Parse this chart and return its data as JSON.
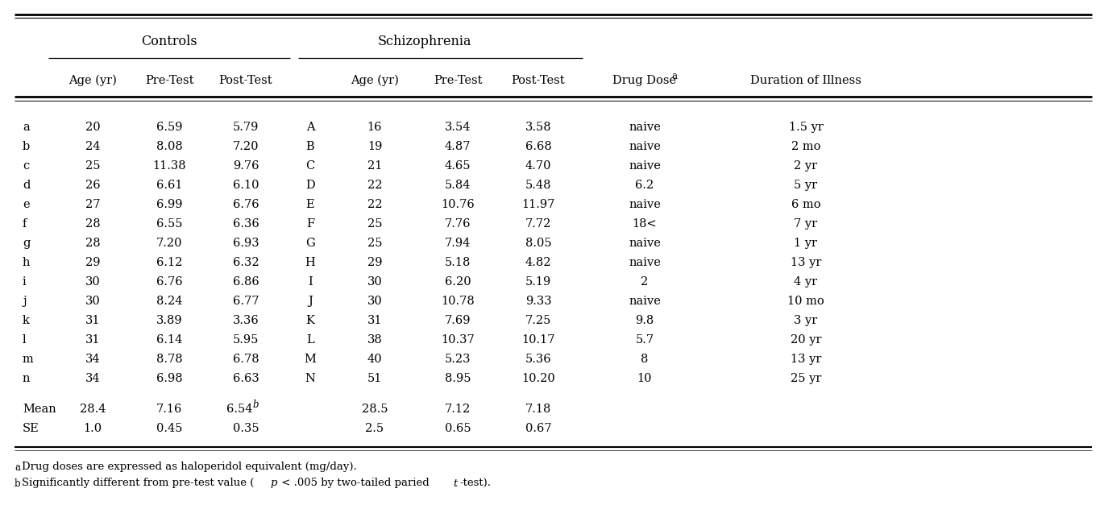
{
  "controls_header": "Controls",
  "schizophrenia_header": "Schizophrenia",
  "controls_data": [
    [
      "a",
      "20",
      "6.59",
      "5.79"
    ],
    [
      "b",
      "24",
      "8.08",
      "7.20"
    ],
    [
      "c",
      "25",
      "11.38",
      "9.76"
    ],
    [
      "d",
      "26",
      "6.61",
      "6.10"
    ],
    [
      "e",
      "27",
      "6.99",
      "6.76"
    ],
    [
      "f",
      "28",
      "6.55",
      "6.36"
    ],
    [
      "g",
      "28",
      "7.20",
      "6.93"
    ],
    [
      "h",
      "29",
      "6.12",
      "6.32"
    ],
    [
      "i",
      "30",
      "6.76",
      "6.86"
    ],
    [
      "j",
      "30",
      "8.24",
      "6.77"
    ],
    [
      "k",
      "31",
      "3.89",
      "3.36"
    ],
    [
      "l",
      "31",
      "6.14",
      "5.95"
    ],
    [
      "m",
      "34",
      "8.78",
      "6.78"
    ],
    [
      "n",
      "34",
      "6.98",
      "6.63"
    ]
  ],
  "schizophrenia_data": [
    [
      "A",
      "16",
      "3.54",
      "3.58",
      "naive",
      "1.5 yr"
    ],
    [
      "B",
      "19",
      "4.87",
      "6.68",
      "naive",
      "2 mo"
    ],
    [
      "C",
      "21",
      "4.65",
      "4.70",
      "naive",
      "2 yr"
    ],
    [
      "D",
      "22",
      "5.84",
      "5.48",
      "6.2",
      "5 yr"
    ],
    [
      "E",
      "22",
      "10.76",
      "11.97",
      "naive",
      "6 mo"
    ],
    [
      "F",
      "25",
      "7.76",
      "7.72",
      "18<",
      "7 yr"
    ],
    [
      "G",
      "25",
      "7.94",
      "8.05",
      "naive",
      "1 yr"
    ],
    [
      "H",
      "29",
      "5.18",
      "4.82",
      "naive",
      "13 yr"
    ],
    [
      "I",
      "30",
      "6.20",
      "5.19",
      "2",
      "4 yr"
    ],
    [
      "J",
      "30",
      "10.78",
      "9.33",
      "naive",
      "10 mo"
    ],
    [
      "K",
      "31",
      "7.69",
      "7.25",
      "9.8",
      "3 yr"
    ],
    [
      "L",
      "38",
      "10.37",
      "10.17",
      "5.7",
      "20 yr"
    ],
    [
      "M",
      "40",
      "5.23",
      "5.36",
      "8",
      "13 yr"
    ],
    [
      "N",
      "51",
      "8.95",
      "10.20",
      "10",
      "25 yr"
    ]
  ],
  "mean_controls": [
    "28.4",
    "7.16",
    "6.54"
  ],
  "mean_schiz": [
    "28.5",
    "7.12",
    "7.18"
  ],
  "se_controls": [
    "1.0",
    "0.45",
    "0.35"
  ],
  "se_schiz": [
    "2.5",
    "0.65",
    "0.67"
  ],
  "footnote_a": "aDrug doses are expressed as haloperidol equivalent (mg/day).",
  "footnote_b": "bSignificantly different from pre-test value (p < .005 by two-tailed paried t-test).",
  "bg_color": "#ffffff",
  "text_color": "#000000",
  "font_size": 10.5
}
